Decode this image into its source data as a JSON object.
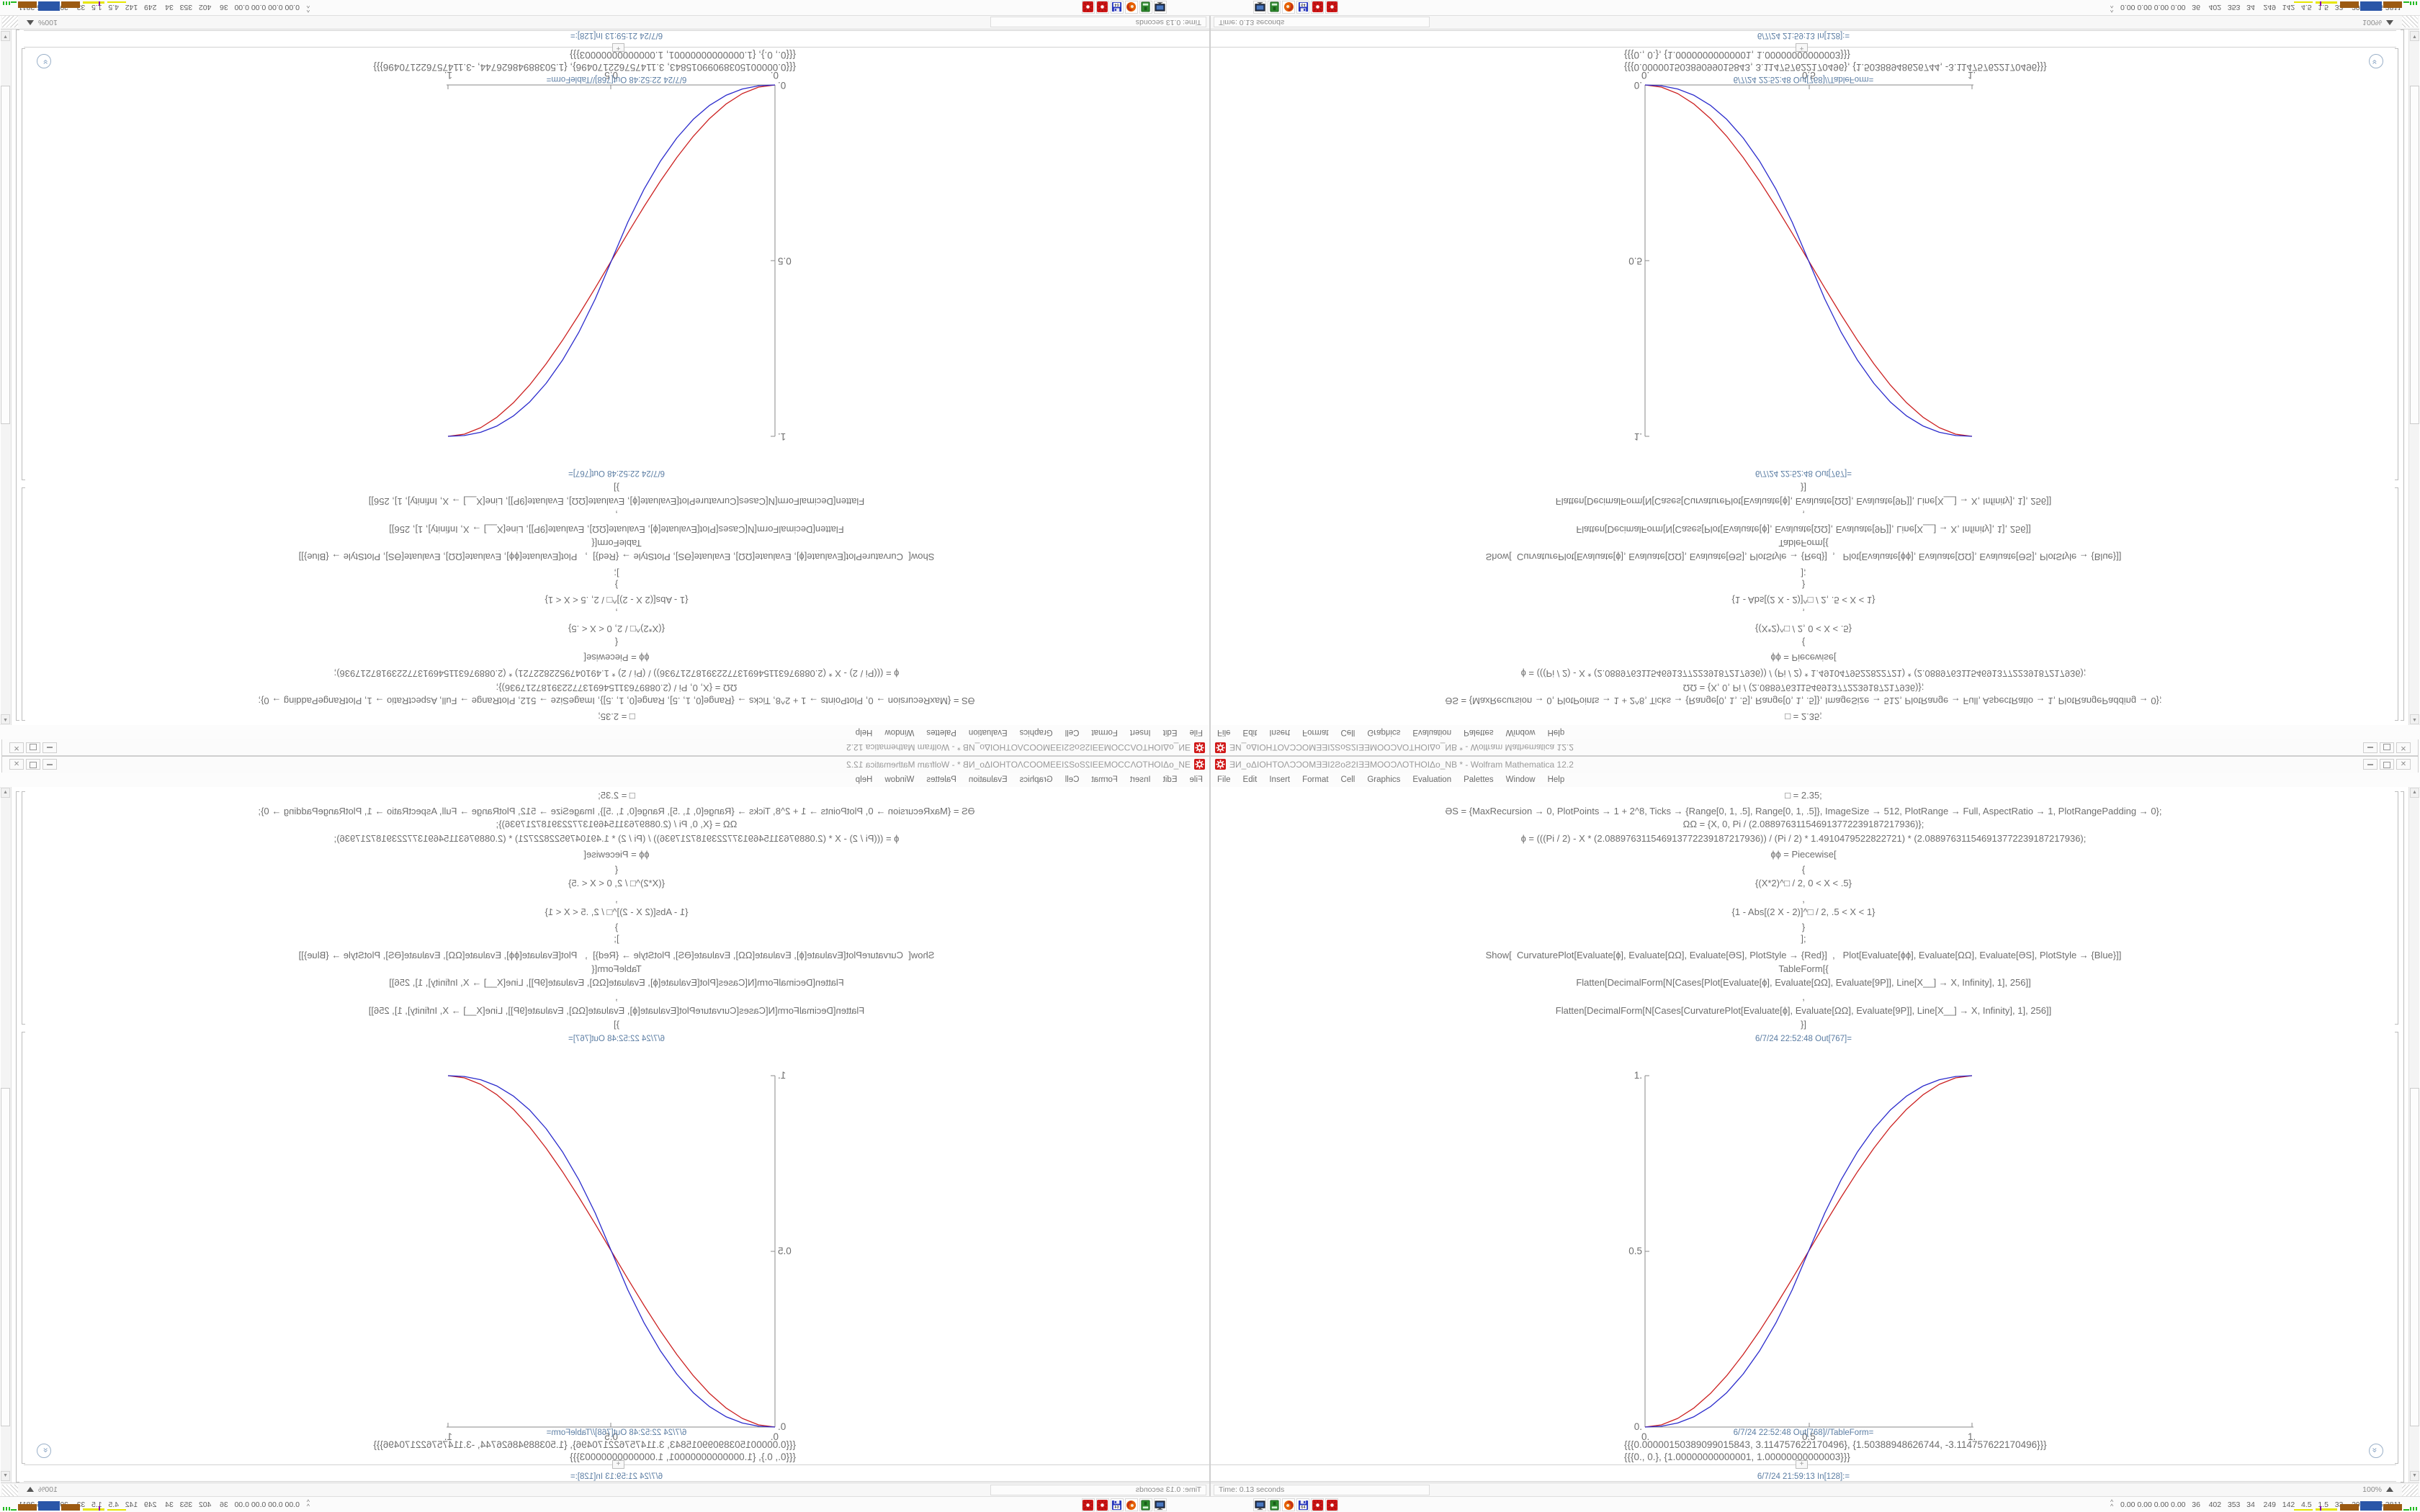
{
  "window": {
    "title": "ƎИ_ᴏΔΙΟΗΤΟΛƆƆΟΜƎƎΙ2ƧᴏƧ2ΙƎƎΜΟΟƆΛΟΤΗΟΙΔᴏ_NB * - Wolfram Mathematica 12.2",
    "controls": {
      "minimize": "",
      "maximize": "",
      "close": "✕"
    },
    "menu": [
      "File",
      "Edit",
      "Insert",
      "Format",
      "Cell",
      "Graphics",
      "Evaluation",
      "Palettes",
      "Window",
      "Help"
    ],
    "status": {
      "time": "Time: 0.13 seconds",
      "zoom": "100%"
    }
  },
  "notebook": {
    "code_lines": [
      "□ = 2.35;",
      "ƏS = {MaxRecursion → 0, PlotPoints → 1 + 2^8, Ticks → {Range[0, 1, .5], Range[0, 1, .5]}, ImageSize → 512, PlotRange → Full, AspectRatio → 1, PlotRangePadding → 0};",
      "ΩΩ = {X, 0, Pi / (2.088976311546913772239187217936)};",
      "ɸ = (((Pi / 2) - X * (2.088976311546913772239187217936)) / (Pi / 2) * 1.4910479522822721) * (2.088976311546913772239187217936);",
      "ɸɸ = Piecewise[",
      "{",
      "{(X*2)^□ / 2, 0 < X < .5}",
      ",",
      "{1 - Abs[(2 X - 2)]^□ / 2, .5 < X < 1}",
      "}",
      "];",
      "Show[  CurvaturePlot[Evaluate[ɸ], Evaluate[ΩΩ], Evaluate[ƏS], PlotStyle → {Red}]  ,   Plot[Evaluate[ɸɸ], Evaluate[ΩΩ], Evaluate[ƏS], PlotStyle → {Blue}]]",
      "TableForm[{",
      "Flatten[DecimalForm[N[Cases[Plot[Evaluate[ɸ], Evaluate[ΩΩ], Evaluate[9P]], Line[X__] → X, Infinity], 1], 256]]",
      ",",
      "Flatten[DecimalForm[N[Cases[CurvaturePlot[Evaluate[ɸ], Evaluate[ΩΩ], Evaluate[9P]], Line[X__] → X, Infinity], 1], 256]]",
      "}]"
    ],
    "out1_label": "6/7/24 22:52:48 Out[767]=",
    "out2_label": "6/7/24 22:52:48 Out[768]//TableForm=",
    "table_rows": [
      "{{{0.00000150389099015843, 3.114757622170496}, {1.50388948626744, -3.114757622170496}}}",
      "{{{0., 0.}, {1.00000000000001, 1.00000000000003}}}"
    ],
    "next_in_label": "6/7/24 21:59:13 In[128]:=",
    "insert_plus": "+",
    "assist_glyph": "»"
  },
  "chart_data": {
    "type": "line",
    "title": "",
    "xlabel": "",
    "ylabel": "",
    "x_range": [
      0,
      1
    ],
    "y_range": [
      0,
      1
    ],
    "x_tick_labels": [
      "0.",
      "0.5",
      "1."
    ],
    "y_tick_labels": [
      "1.",
      "0.5",
      "0."
    ],
    "grid": false,
    "legend": "none",
    "axes_color": "#8a8a8a",
    "x": [
      0,
      0.05,
      0.1,
      0.15,
      0.2,
      0.25,
      0.3,
      0.35,
      0.4,
      0.45,
      0.5,
      0.55,
      0.6,
      0.65,
      0.7,
      0.75,
      0.8,
      0.85,
      0.9,
      0.95,
      1
    ],
    "series": [
      {
        "name": "CurvaturePlot[ɸ] (Red)",
        "color": "#cc2020",
        "y": [
          0,
          0.0062,
          0.0245,
          0.0545,
          0.0955,
          0.1464,
          0.2061,
          0.273,
          0.3455,
          0.4218,
          0.5,
          0.5782,
          0.6545,
          0.727,
          0.7939,
          0.8536,
          0.9045,
          0.9455,
          0.9755,
          0.9938,
          1
        ]
      },
      {
        "name": "Plot[ɸɸ Piecewise ^2.35] (Blue)",
        "color": "#2a2acc",
        "y": [
          0,
          0.0022,
          0.0114,
          0.0295,
          0.058,
          0.098,
          0.1506,
          0.2163,
          0.296,
          0.3903,
          0.5,
          0.6097,
          0.704,
          0.7837,
          0.8494,
          0.902,
          0.942,
          0.9705,
          0.9886,
          0.9978,
          1
        ]
      }
    ]
  },
  "taskbar": {
    "icons": [
      {
        "name": "monitor-icon"
      },
      {
        "name": "package-icon"
      },
      {
        "name": "firefox-icon"
      },
      {
        "name": "floppy-64-icon",
        "label": "64"
      },
      {
        "name": "mathematica-icon"
      },
      {
        "name": "mathematica-icon"
      }
    ],
    "sysmon": {
      "chevron": "^",
      "values_text": "0.00 0.00 0.00 0.00   36    402   353   34    249   142   4.5   1.5   33    29   2955 3811",
      "values": [
        0.0,
        0.0,
        0.0,
        0.0,
        36,
        402,
        353,
        34,
        249,
        142,
        4.5,
        1.5,
        33,
        29,
        2955,
        3811
      ],
      "spark_colors": {
        "yellow": "#e6e600",
        "purple": "#8800aa",
        "brown": "#9c5a12",
        "blue": "#2a56a8",
        "green": "#22bb22"
      },
      "sparks": [
        {
          "color": "#e6e600",
          "x": 0,
          "w": 26,
          "h": 2
        },
        {
          "color": "#e6e600",
          "x": 30,
          "w": 30,
          "h": 3
        },
        {
          "color": "#8800aa",
          "x": 36,
          "w": 2,
          "h": 6
        },
        {
          "color": "#9c5a12",
          "x": 64,
          "w": 26,
          "h": 9
        },
        {
          "color": "#2a56a8",
          "x": 92,
          "w": 30,
          "h": 13
        },
        {
          "color": "#9c5a12",
          "x": 124,
          "w": 26,
          "h": 9
        },
        {
          "color": "#22bb22",
          "x": 152,
          "w": 8,
          "h": 2
        },
        {
          "color": "#22bb22",
          "x": 161,
          "w": 2,
          "h": 5
        },
        {
          "color": "#22bb22",
          "x": 165,
          "w": 2,
          "h": 5
        },
        {
          "color": "#22bb22",
          "x": 169,
          "w": 2,
          "h": 5
        }
      ]
    }
  }
}
